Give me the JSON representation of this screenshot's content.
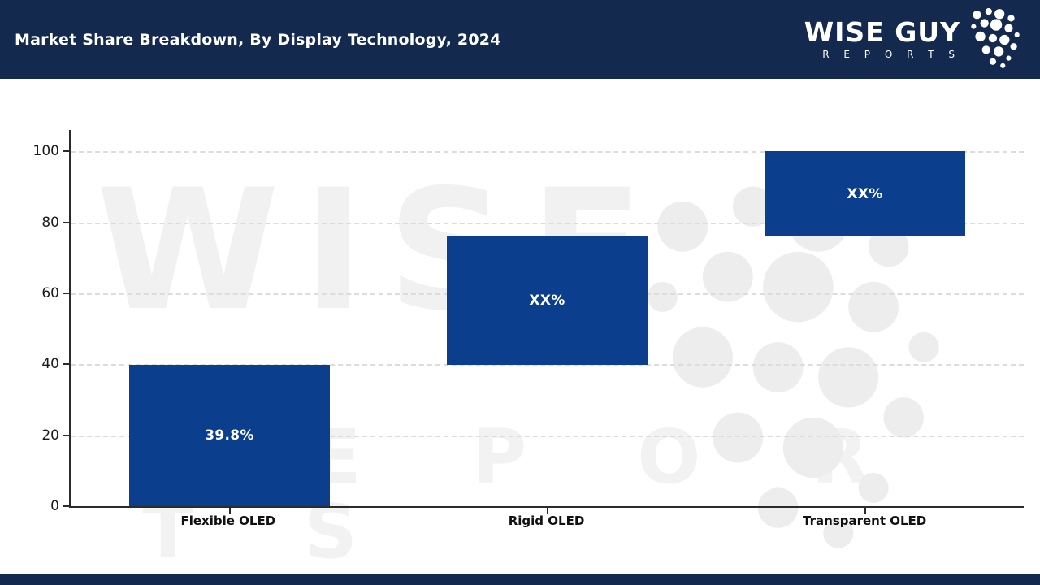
{
  "header": {
    "title": "Market Share Breakdown, By Display Technology, 2024",
    "bg_color": "#13294e",
    "logo": {
      "line1": "WISE GUY",
      "line2": "R E P O R T S"
    }
  },
  "watermark": {
    "line1": "WISE",
    "line2": "R E P O R T S"
  },
  "chart_data": {
    "type": "bar",
    "subtype": "waterfall",
    "title": "Market Share Breakdown, By Display Technology, 2024",
    "categories": [
      "Flexible OLED",
      "Rigid OLED",
      "Transparent OLED"
    ],
    "segments": [
      {
        "category": "Flexible OLED",
        "start": 0,
        "end": 39.8,
        "label": "39.8%"
      },
      {
        "category": "Rigid OLED",
        "start": 39.8,
        "end": 76,
        "label": "XX%"
      },
      {
        "category": "Transparent OLED",
        "start": 76,
        "end": 100,
        "label": "XX%"
      }
    ],
    "xlabel": "",
    "ylabel": "",
    "ylim": [
      0,
      100
    ],
    "plot_max": 106,
    "yticks": [
      0,
      20,
      40,
      60,
      80,
      100
    ],
    "grid": true,
    "gridline_style": "dashed",
    "legend": "none",
    "bar_color": "#0c3e8e",
    "bar_width_pct": 21,
    "label_color": "#ffffff"
  }
}
